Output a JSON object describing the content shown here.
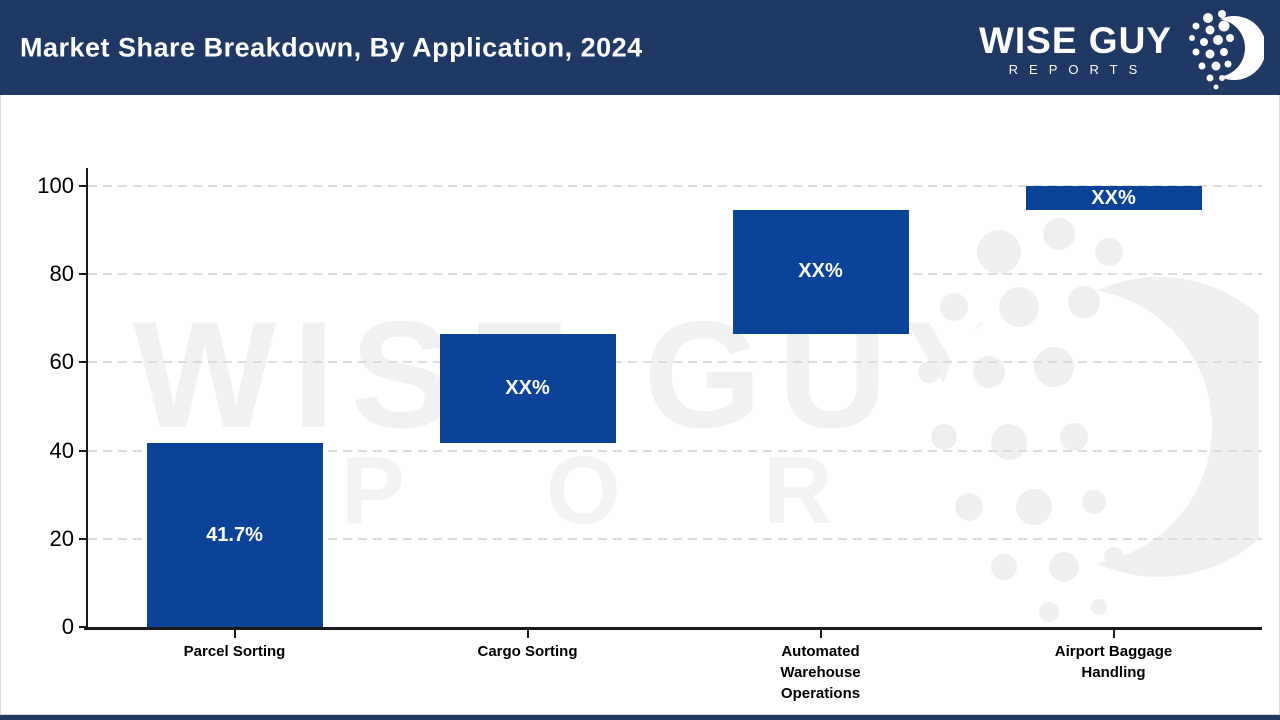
{
  "header": {
    "title": "Market Share Breakdown, By Application, 2024",
    "logo_line1": "WISE GUY",
    "logo_line2": "REPORTS",
    "bg_color": "#1f3864"
  },
  "watermark": {
    "line1": "WISE GUY",
    "line2": "P O R T S"
  },
  "chart_data": {
    "type": "bar",
    "subtype": "waterfall",
    "title": "Market Share Breakdown, By Application, 2024",
    "categories": [
      "Parcel Sorting",
      "Cargo Sorting",
      "Automated Warehouse Operations",
      "Airport Baggage Handling"
    ],
    "segments": [
      {
        "category": "Parcel Sorting",
        "start": 0,
        "end": 41.7,
        "label": "41.7%"
      },
      {
        "category": "Cargo Sorting",
        "start": 41.7,
        "end": 66.5,
        "label": "XX%"
      },
      {
        "category": "Automated Warehouse Operations",
        "start": 66.5,
        "end": 94.5,
        "label": "XX%"
      },
      {
        "category": "Airport Baggage Handling",
        "start": 94.5,
        "end": 100,
        "label": "XX%"
      }
    ],
    "yticks": [
      0,
      20,
      40,
      60,
      80,
      100
    ],
    "ylim": [
      0,
      104
    ],
    "grid": "horizontal dashed",
    "legend": "none",
    "colors": {
      "bar": "#0b4398",
      "bar_label": "#ffffff",
      "grid": "#dcdcdc",
      "axis": "#1a1a1a",
      "header_bg": "#1f3864",
      "watermark": "#f1f1f1"
    }
  }
}
